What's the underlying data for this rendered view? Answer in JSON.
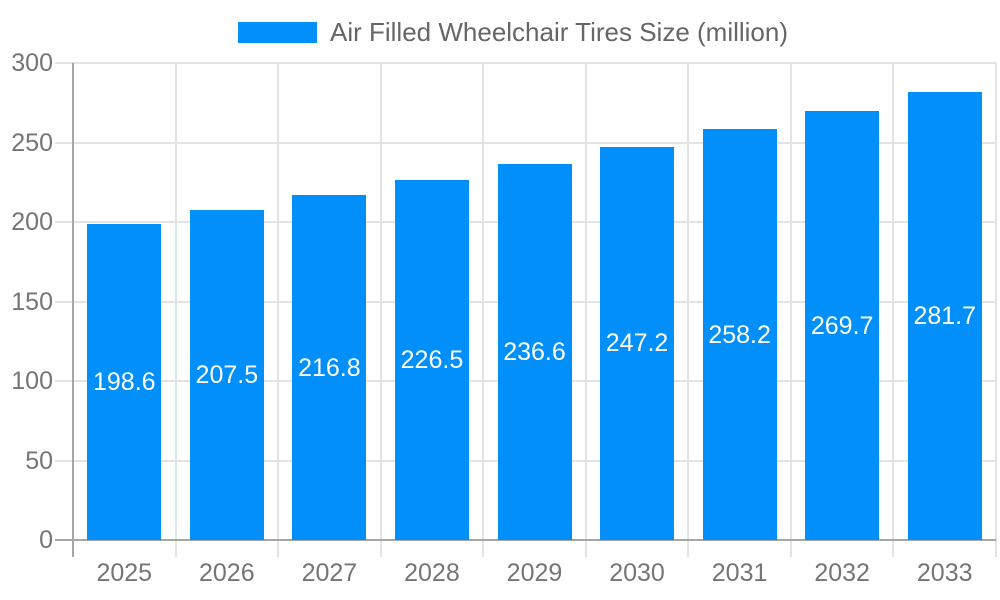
{
  "legend": {
    "label": "Air Filled Wheelchair Tires Size (million)"
  },
  "chart_data": {
    "type": "bar",
    "title": "Air Filled Wheelchair Tires Size (million)",
    "categories": [
      "2025",
      "2026",
      "2027",
      "2028",
      "2029",
      "2030",
      "2031",
      "2032",
      "2033"
    ],
    "series": [
      {
        "name": "Air Filled Wheelchair Tires Size (million)",
        "values": [
          198.6,
          207.5,
          216.8,
          226.5,
          236.6,
          247.2,
          258.2,
          269.7,
          281.7
        ]
      }
    ],
    "data_labels": [
      "198.6",
      "207.5",
      "216.8",
      "226.5",
      "236.6",
      "247.2",
      "258.2",
      "269.7",
      "281.7"
    ],
    "data_label_position": "inside-center",
    "xlabel": "",
    "ylabel": "",
    "ylim": [
      0,
      300
    ],
    "yticks": [
      0,
      50,
      100,
      150,
      200,
      250,
      300
    ],
    "grid": true,
    "legend_position": "top-center"
  },
  "colors": {
    "bar": "#008FFB",
    "data_label_text": "#ffffff",
    "axis_label_text": "#757575",
    "legend_text": "#666666",
    "gridline": "#e3e3e3",
    "axis_line": "#a6a6a6",
    "background": "#ffffff"
  }
}
